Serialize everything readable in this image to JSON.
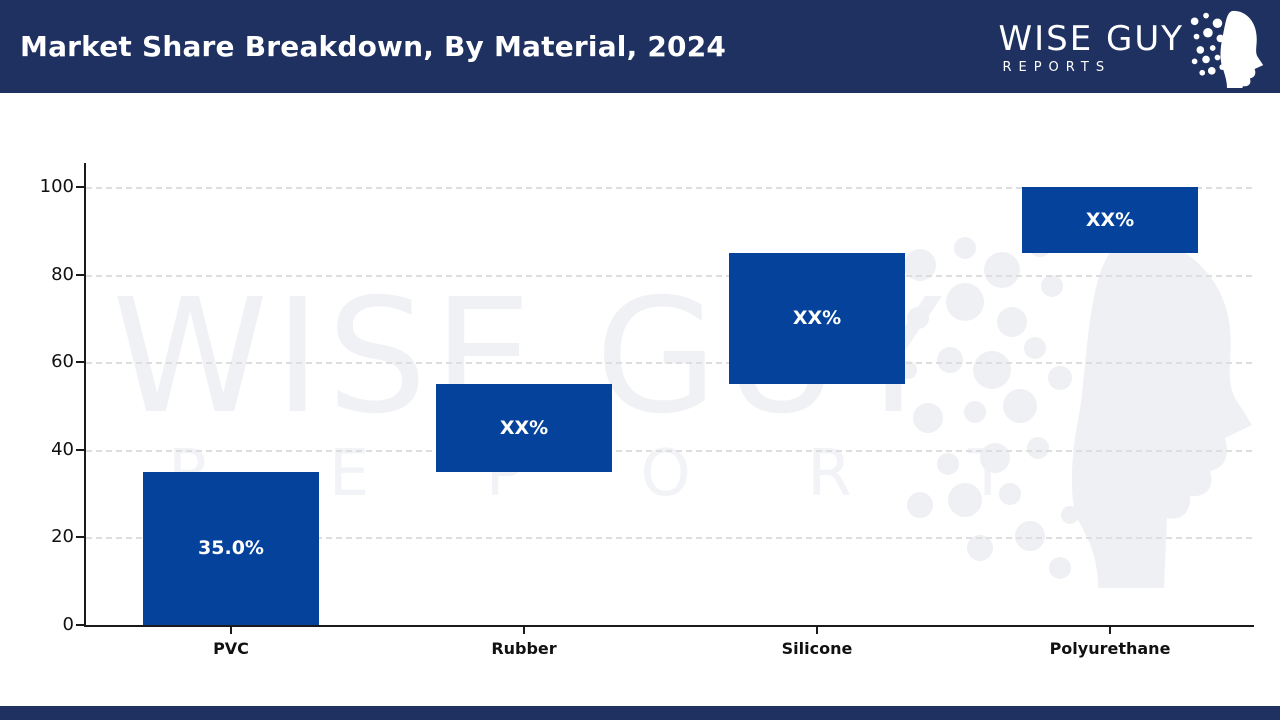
{
  "header": {
    "title": "Market Share Breakdown, By Material, 2024",
    "logo_line1": "WISE GUY",
    "logo_line2": "REPORTS"
  },
  "watermark": {
    "line1": "WISE GUY",
    "line2": "R E P O R T S"
  },
  "chart_data": {
    "type": "bar",
    "variant": "waterfall",
    "title": "Market Share Breakdown, By Material, 2024",
    "categories": [
      "PVC",
      "Rubber",
      "Silicone",
      "Polyurethane"
    ],
    "segments": [
      {
        "category": "PVC",
        "from": 0,
        "to": 35,
        "label": "35.0%"
      },
      {
        "category": "Rubber",
        "from": 35,
        "to": 55,
        "label": "XX%"
      },
      {
        "category": "Silicone",
        "from": 55,
        "to": 85,
        "label": "XX%"
      },
      {
        "category": "Polyurethane",
        "from": 85,
        "to": 100,
        "label": "XX%"
      }
    ],
    "yticks": [
      0,
      20,
      40,
      60,
      80,
      100
    ],
    "ylim": [
      0,
      105
    ],
    "xlabel": "",
    "ylabel": "",
    "legend": "none",
    "grid": "horizontal-dashed",
    "bar_color": "#05429b",
    "value_label_color": "#ffffff",
    "header_color": "#1e3160"
  }
}
